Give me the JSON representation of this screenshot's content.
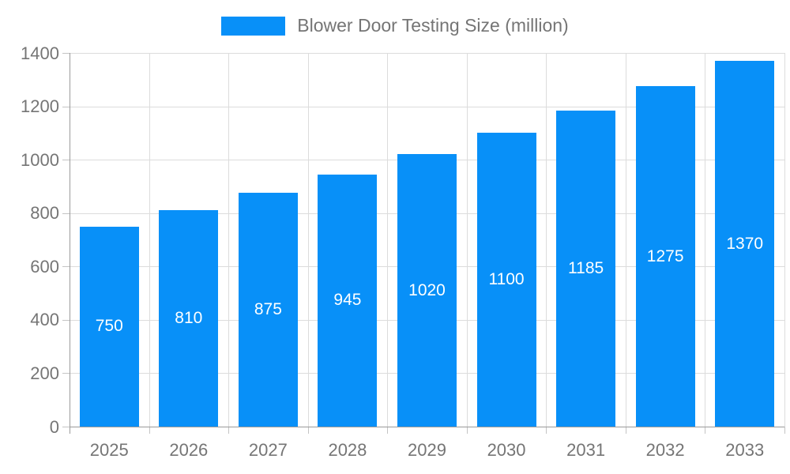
{
  "chart_data": {
    "type": "bar",
    "title": "Blower Door Testing Size (million)",
    "legend": {
      "position": "top",
      "label": "Blower Door Testing Size (million)"
    },
    "categories": [
      "2025",
      "2026",
      "2027",
      "2028",
      "2029",
      "2030",
      "2031",
      "2032",
      "2033"
    ],
    "series": [
      {
        "name": "Blower Door Testing Size (million)",
        "values": [
          750,
          810,
          875,
          945,
          1020,
          1100,
          1185,
          1275,
          1370
        ]
      }
    ],
    "bar_value_labels": [
      "750",
      "810",
      "875",
      "945",
      "1020",
      "1100",
      "1185",
      "1275",
      "1370"
    ],
    "xlabel": "",
    "ylabel": "",
    "ylim": [
      0,
      1400
    ],
    "ytick_step": 200,
    "yticks": [
      "0",
      "200",
      "400",
      "600",
      "800",
      "1000",
      "1200",
      "1400"
    ],
    "grid": "horizontal-and-vertical",
    "colors": {
      "bar": "#0890f8",
      "bar_label_text": "#ffffff",
      "axis_text": "#757575",
      "gridline": "#dcdcdc",
      "tick": "#c4c4c4",
      "axis_line": "#9b9b9b",
      "background": "#ffffff"
    }
  }
}
